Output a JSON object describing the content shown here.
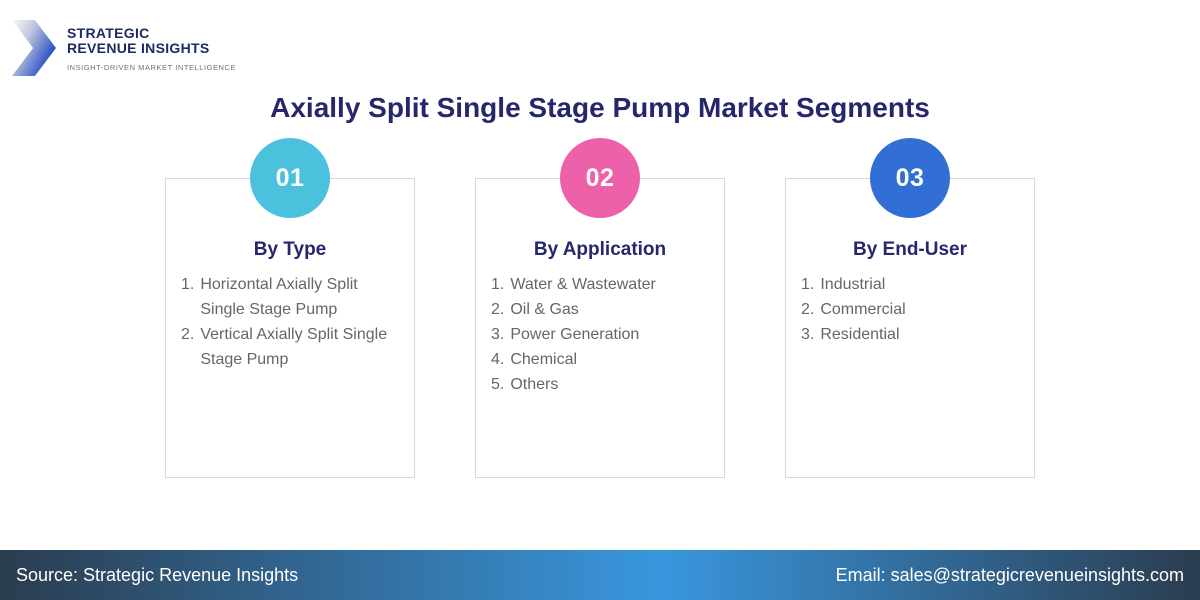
{
  "brand": {
    "name_line1": "STRATEGIC",
    "name_line2": "REVENUE INSIGHTS",
    "tagline": "INSIGHT-DRIVEN MARKET INTELLIGENCE",
    "chevron_icon": "chevron-right-arrow",
    "chevron_gradient": [
      "#f1f1f6",
      "#c0c8de",
      "#2d53c4"
    ]
  },
  "title": "Axially Split Single Stage Pump Market Segments",
  "cards": [
    {
      "number": "01",
      "badge_color": "#4cc1dd",
      "heading": "By Type",
      "items": [
        "Horizontal Axially Split Single Stage Pump",
        "Vertical Axially Split Single Stage Pump"
      ]
    },
    {
      "number": "02",
      "badge_color": "#ed61a9",
      "heading": "By Application",
      "items": [
        "Water & Wastewater",
        "Oil & Gas",
        "Power Generation",
        "Chemical",
        "Others"
      ]
    },
    {
      "number": "03",
      "badge_color": "#326fd4",
      "heading": "By End-User",
      "items": [
        "Industrial",
        "Commercial",
        "Residential"
      ]
    }
  ],
  "footer": {
    "source": "Source: Strategic Revenue Insights",
    "email": "Email: sales@strategicrevenueinsights.com"
  },
  "colors": {
    "title_navy": "#26266d",
    "heading_navy": "#26266d",
    "list_gray": "#63666d",
    "card_border": "#d8d8d8",
    "footer_edge": "#2b3c4f",
    "footer_center": "#3997de",
    "brand_navy": "#1d2b63",
    "tagline_gray": "#6e6e85"
  }
}
